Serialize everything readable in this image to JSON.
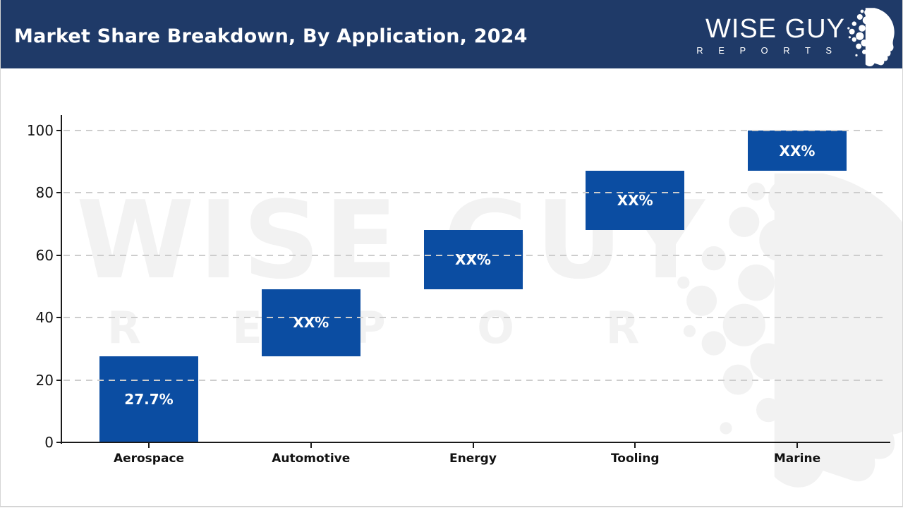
{
  "header": {
    "title": "Market Share Breakdown, By Application, 2024",
    "logo": {
      "name": "WISE GUY",
      "sub": "R E P O R T S"
    }
  },
  "watermark": {
    "line1": "WISE GUY",
    "line2": "R E P O R T S"
  },
  "colors": {
    "header_bg": "#1f3a68",
    "bar": "#0b4da2",
    "grid": "#cdcdcd",
    "axis": "#1a1a1a",
    "watermark": "#f2f2f2"
  },
  "chart_data": {
    "type": "bar",
    "variant": "waterfall",
    "title": "Market Share Breakdown, By Application, 2024",
    "categories": [
      "Aerospace",
      "Automotive",
      "Energy",
      "Tooling",
      "Marine"
    ],
    "segments": [
      {
        "category": "Aerospace",
        "start": 0,
        "end": 27.7,
        "label": "27.7%"
      },
      {
        "category": "Automotive",
        "start": 27.7,
        "end": 49,
        "label": "XX%"
      },
      {
        "category": "Energy",
        "start": 49,
        "end": 68,
        "label": "XX%"
      },
      {
        "category": "Tooling",
        "start": 68,
        "end": 87,
        "label": "XX%"
      },
      {
        "category": "Marine",
        "start": 87,
        "end": 100,
        "label": "XX%"
      }
    ],
    "ylim": [
      0,
      100
    ],
    "yticks": [
      0,
      20,
      40,
      60,
      80,
      100
    ],
    "xlabel": "",
    "ylabel": "",
    "grid": "horizontal-dashed",
    "legend": "none",
    "bar_color": "#0b4da2",
    "bar_label_color": "#ffffff"
  }
}
